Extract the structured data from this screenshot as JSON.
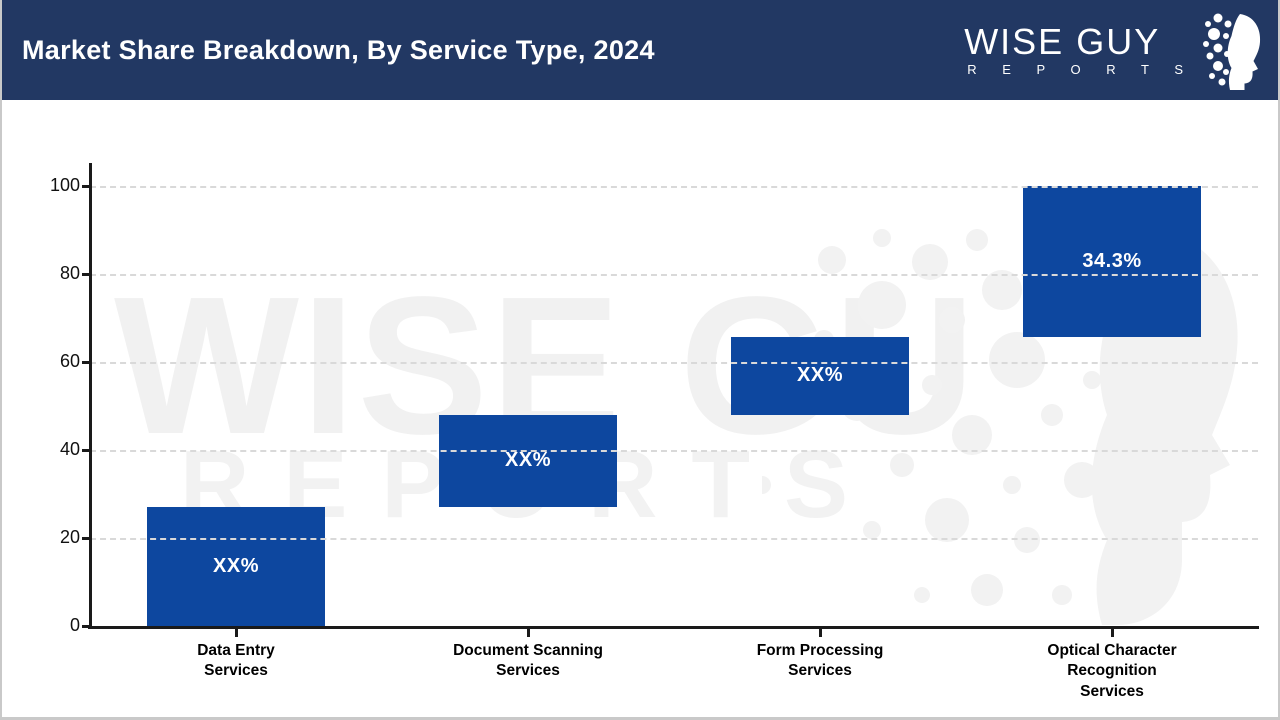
{
  "header": {
    "title": "Market Share Breakdown, By Service Type, 2024",
    "logo": {
      "line1": "WISE GUY",
      "line2": "R E P O R T S"
    }
  },
  "watermark": {
    "line1": "WISE GU",
    "line2": "REPORTS"
  },
  "colors": {
    "header_bg": "#223863",
    "bar": "#0d479f",
    "grid": "#d9d9d9",
    "axis": "#1a1a1a",
    "bar_value_text": "#ffffff",
    "watermark": "#f1f1f1",
    "frame_border": "#c9c9c9"
  },
  "chart_data": {
    "type": "bar",
    "variant": "waterfall (floating stacked segments)",
    "title": "Market Share Breakdown, By Service Type, 2024",
    "categories": [
      "Data Entry Services",
      "Document Scanning Services",
      "Form Processing Services",
      "Optical Character Recognition Services"
    ],
    "category_label_lines": [
      "Data Entry\nServices",
      "Document Scanning\nServices",
      "Form Processing\nServices",
      "Optical Character\nRecognition\nServices"
    ],
    "segments": [
      {
        "category": "Data Entry Services",
        "start": 0,
        "end": 27,
        "height": 27,
        "value_label": "XX%"
      },
      {
        "category": "Document Scanning Services",
        "start": 27,
        "end": 48,
        "height": 21,
        "value_label": "XX%"
      },
      {
        "category": "Form Processing Services",
        "start": 48,
        "end": 65.7,
        "height": 17.7,
        "value_label": "XX%"
      },
      {
        "category": "Optical Character Recognition Services",
        "start": 65.7,
        "end": 100,
        "height": 34.3,
        "value": 34.3,
        "value_label": "34.3%"
      }
    ],
    "ylabel": "",
    "xlabel": "",
    "yticks": [
      0,
      20,
      40,
      60,
      80,
      100
    ],
    "ylim": [
      0,
      105
    ],
    "grid": {
      "horizontal": true,
      "style": "dashed",
      "above_bars": true
    },
    "legend": null,
    "bar_color": "#0d479f"
  }
}
